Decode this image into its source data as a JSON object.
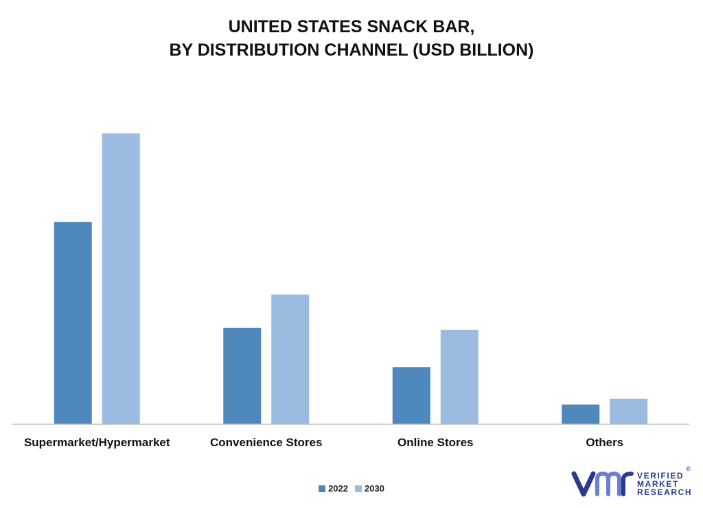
{
  "title_line1": "UNITED STATES SNACK BAR,",
  "title_line2": "BY DISTRIBUTION CHANNEL (USD BILLION)",
  "colors": {
    "s2022": "#4f88bd",
    "s2030": "#9cbbe0",
    "axis": "#bfbfbf",
    "text": "#111111",
    "brand": "#2b3a8c",
    "brand_light": "#6a7fd4"
  },
  "logo": {
    "line1": "VERIFIED",
    "line2": "MARKET",
    "line3": "RESEARCH",
    "reg": "®"
  },
  "chart_data": {
    "type": "bar",
    "categories": [
      "Supermarket/Hypermarket",
      "Convenience Stores",
      "Online Stores",
      "Others"
    ],
    "series": [
      {
        "name": "2022",
        "values": [
          10.3,
          4.9,
          2.9,
          1.0
        ]
      },
      {
        "name": "2030",
        "values": [
          14.8,
          6.6,
          4.8,
          1.3
        ]
      }
    ],
    "ylim": [
      0,
      16
    ],
    "grid": false,
    "legend": "bottom-center",
    "title": "UNITED STATES SNACK BAR, BY DISTRIBUTION CHANNEL (USD BILLION)"
  }
}
